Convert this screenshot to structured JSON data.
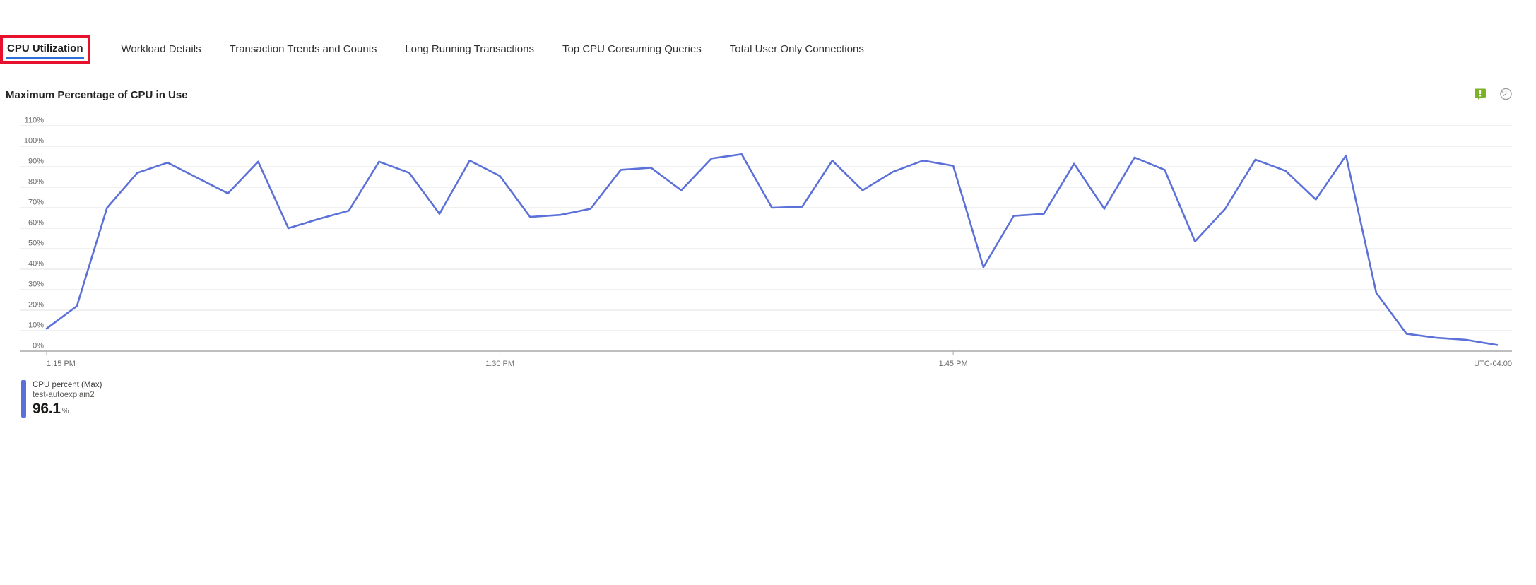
{
  "tabs": [
    {
      "label": "CPU Utilization",
      "selected": true
    },
    {
      "label": "Workload Details",
      "selected": false
    },
    {
      "label": "Transaction Trends and Counts",
      "selected": false
    },
    {
      "label": "Long Running Transactions",
      "selected": false
    },
    {
      "label": "Top CPU Consuming Queries",
      "selected": false
    },
    {
      "label": "Total User Only Connections",
      "selected": false
    }
  ],
  "header": {
    "title": "Maximum Percentage of CPU in Use",
    "icons": [
      "feedback-icon",
      "history-clock-icon"
    ]
  },
  "chart_data": {
    "type": "line",
    "title": "Maximum Percentage of CPU in Use",
    "ylabel": "CPU percent",
    "ylim": [
      0,
      110
    ],
    "y_ticks_percent": [
      110,
      100,
      90,
      80,
      70,
      60,
      50,
      40,
      30,
      20,
      10,
      0
    ],
    "grid": true,
    "x_tick_labels": [
      "1:15 PM",
      "1:30 PM",
      "1:45 PM"
    ],
    "x_tick_indices": [
      0,
      15,
      30
    ],
    "timezone_label": "UTC-04:00",
    "start_time": "1:15 PM",
    "interval_minutes": 1,
    "legend_position": "bottom-left",
    "series": [
      {
        "name": "CPU percent (Max)",
        "resource": "test-autoexplain2",
        "color": "#5B70D8",
        "max_display_value": "96.1",
        "unit": "%",
        "values": [
          11,
          22,
          70,
          87,
          92,
          84.5,
          77,
          92.5,
          60,
          64.5,
          68.5,
          92.5,
          87,
          67,
          93,
          85.5,
          65.5,
          66.5,
          69.5,
          88.5,
          89.5,
          78.5,
          94,
          96.1,
          70,
          70.5,
          93,
          78.5,
          87.5,
          93,
          90.5,
          41,
          66,
          67,
          91.5,
          69.5,
          94.5,
          88.5,
          53.5,
          69.5,
          93.5,
          88,
          74,
          95.5,
          28.5,
          8.5,
          6.5,
          5.5,
          3
        ]
      }
    ]
  },
  "legend": {
    "series_label": "CPU percent (Max)",
    "resource": "test-autoexplain2",
    "value": "96.1",
    "unit": "%"
  },
  "annotations": {
    "highlight_box": {
      "target_tab": "CPU Utilization",
      "color": "#E8112D"
    }
  },
  "colors": {
    "line": "#5B70D8",
    "tab_underline": "#2A6FD8",
    "highlight_box": "#E8112D",
    "gridline": "#E2E2E2",
    "axis": "#A9A9A9",
    "tick_label": "#6A6A6A",
    "feedback_icon_green": "#7DB228"
  }
}
